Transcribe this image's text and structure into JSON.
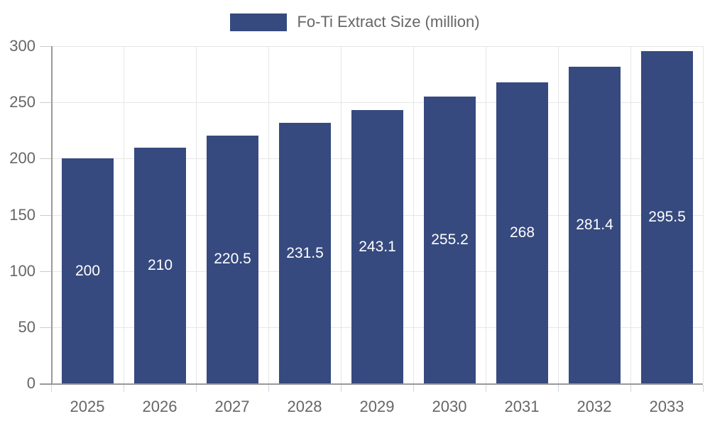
{
  "chart_data": {
    "type": "bar",
    "title": "Fo-Ti Extract Size (million)",
    "legend_position": "top",
    "grid": true,
    "categories": [
      "2025",
      "2026",
      "2027",
      "2028",
      "2029",
      "2030",
      "2031",
      "2032",
      "2033"
    ],
    "series": [
      {
        "name": "Fo-Ti Extract Size (million)",
        "values": [
          200,
          210,
          220.5,
          231.5,
          243.1,
          255.2,
          268,
          281.4,
          295.5
        ],
        "value_labels": [
          "200",
          "210",
          "220.5",
          "231.5",
          "243.1",
          "255.2",
          "268",
          "281.4",
          "295.5"
        ]
      }
    ],
    "xlabel": "",
    "ylabel": "",
    "ylim": [
      0,
      300
    ],
    "y_ticks": [
      0,
      50,
      100,
      150,
      200,
      250,
      300
    ],
    "colors": {
      "bar": "#364a7f",
      "grid": "#e6e6e6",
      "axis": "#999999",
      "y_tick_mark": "#cccccc",
      "x_tick_mark": "#ccd6eb",
      "tick_text": "#666666",
      "legend_text": "#666666",
      "value_label_text": "#ffffff",
      "background": "#ffffff"
    }
  }
}
